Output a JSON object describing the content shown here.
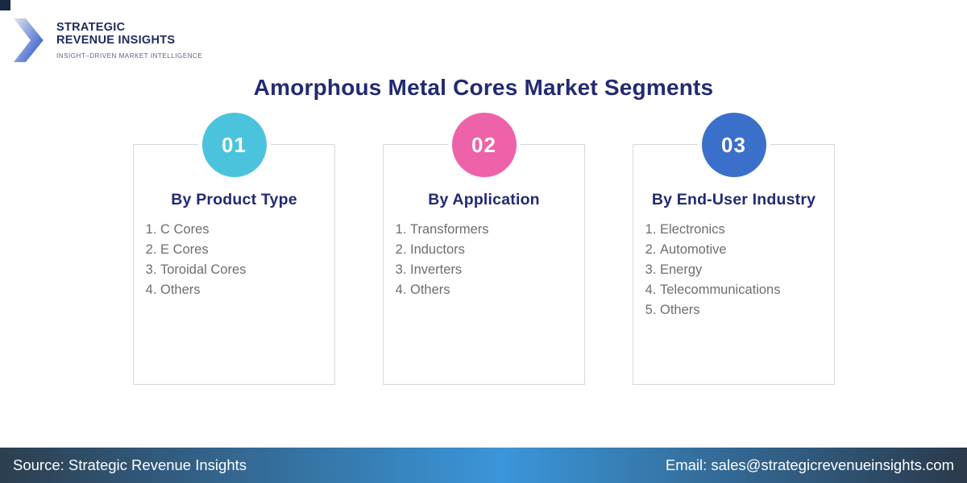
{
  "brand": {
    "name_line1": "STRATEGIC",
    "name_line2": "REVENUE INSIGHTS",
    "tagline": "INSIGHT–DRIVEN MARKET INTELLIGENCE"
  },
  "title": "Amorphous Metal Cores Market Segments",
  "colors": {
    "accent_navy": "#232a72",
    "segment1_circle": "#4cc3dd",
    "segment2_circle": "#ee62a9",
    "segment3_circle": "#3b70ca",
    "footer_left": "#2d3e50",
    "footer_mid": "#3b96da",
    "footer_right": "#2b394b"
  },
  "segments": [
    {
      "number": "01",
      "color": "#4cc3dd",
      "heading": "By Product Type",
      "items": [
        "C Cores",
        "E Cores",
        "Toroidal Cores",
        "Others"
      ]
    },
    {
      "number": "02",
      "color": "#ee62a9",
      "heading": "By Application",
      "items": [
        "Transformers",
        "Inductors",
        "Inverters",
        "Others"
      ]
    },
    {
      "number": "03",
      "color": "#3b70ca",
      "heading": "By End-User Industry",
      "items": [
        "Electronics",
        "Automotive",
        "Energy",
        "Telecommunications",
        "Others"
      ]
    }
  ],
  "footer": {
    "source": "Source: Strategic Revenue Insights",
    "email": "Email: sales@strategicrevenueinsights.com"
  }
}
